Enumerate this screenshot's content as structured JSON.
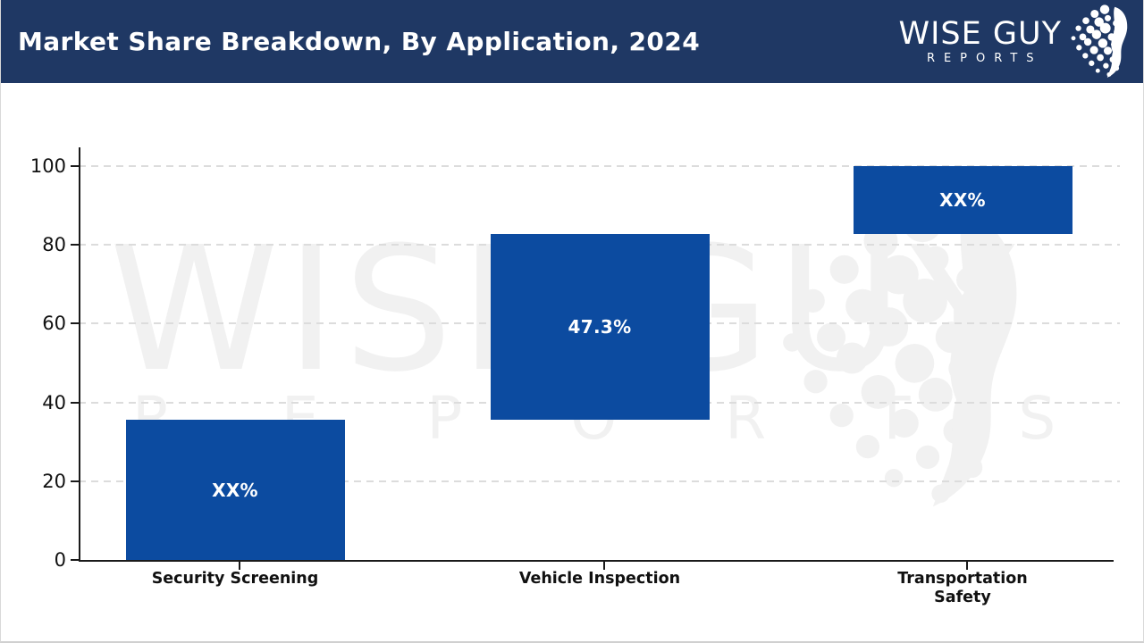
{
  "header": {
    "title": "Market Share Breakdown, By Application, 2024",
    "logo": {
      "name": "WISE GUY",
      "sub": "REPORTS",
      "icon": "wiseguy-face-icon"
    }
  },
  "watermark": {
    "line1": "WISE GUY",
    "line2": "R E P O R T S",
    "icon": "wiseguy-face-watermark-icon"
  },
  "chart_data": {
    "type": "bar",
    "variant": "floating-segment-waterfall",
    "title": "Market Share Breakdown, By Application, 2024",
    "categories": [
      "Security Screening",
      "Vehicle Inspection",
      "Transportation Safety"
    ],
    "segments": [
      {
        "category": "Security Screening",
        "start": 0,
        "end": 35.5,
        "label": "XX%"
      },
      {
        "category": "Vehicle Inspection",
        "start": 35.5,
        "end": 82.8,
        "label": "47.3%"
      },
      {
        "category": "Transportation Safety",
        "start": 82.8,
        "end": 100,
        "label": "XX%"
      }
    ],
    "xlabel": "",
    "ylabel": "",
    "yticks": [
      0,
      20,
      40,
      60,
      80,
      100
    ],
    "ylim": [
      0,
      105
    ],
    "grid": "horizontal-dashed",
    "legend": null,
    "bar_color": "#0c4ba0",
    "bar_label_color": "#ffffff"
  },
  "colors": {
    "header_bg": "#1f3864",
    "bar": "#0c4ba0",
    "grid": "#dcdcdc",
    "axis": "#1a1a1a",
    "watermark": "#f1f1f1",
    "text": "#111111"
  }
}
